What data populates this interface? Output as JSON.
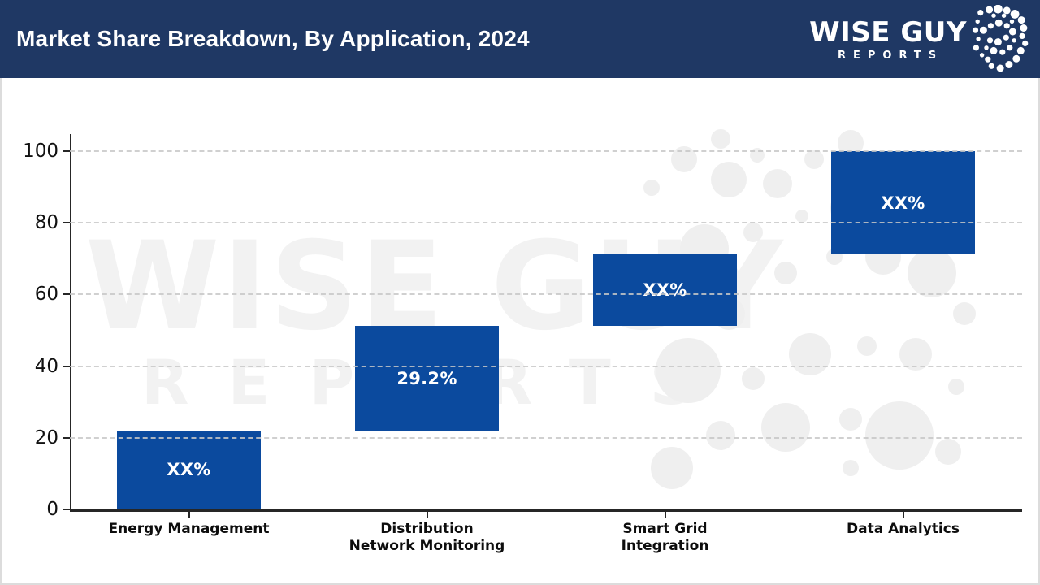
{
  "header": {
    "title": "Market Share Breakdown, By Application, 2024",
    "logo": {
      "wise_guy": "WISE GUY",
      "reports": "REPORTS"
    }
  },
  "watermark": {
    "wise_guy": "WISE GUY",
    "reports": "REPORTS"
  },
  "chart_data": {
    "type": "bar",
    "variant": "waterfall-floating-bars",
    "title": "Market Share Breakdown, By Application, 2024",
    "categories": [
      [
        "Energy Management"
      ],
      [
        "Distribution",
        "Network Monitoring"
      ],
      [
        "Smart Grid",
        "Integration"
      ],
      [
        "Data Analytics"
      ]
    ],
    "segments": [
      {
        "category": "Energy Management",
        "start": 0,
        "end": 22,
        "value": 22,
        "label": "XX%"
      },
      {
        "category": "Distribution Network Monitoring",
        "start": 22,
        "end": 51.2,
        "value": 29.2,
        "label": "29.2%"
      },
      {
        "category": "Smart Grid Integration",
        "start": 51.2,
        "end": 71.2,
        "value": 20,
        "label": "XX%"
      },
      {
        "category": "Data Analytics",
        "start": 71.2,
        "end": 100,
        "value": 28.8,
        "label": "XX%"
      }
    ],
    "y_ticks": [
      "0",
      "20",
      "40",
      "60",
      "80",
      "100"
    ],
    "ylim": [
      0,
      105
    ],
    "xlabel": "",
    "ylabel": "",
    "legend": "none",
    "grid": "horizontal-dashed",
    "colors": {
      "bar": "#0b4a9e",
      "header_bg": "#1f3864",
      "axis": "#262626",
      "grid": "#c8c8c8",
      "watermark": "#f2f2f2",
      "bar_label_text": "#ffffff"
    }
  }
}
